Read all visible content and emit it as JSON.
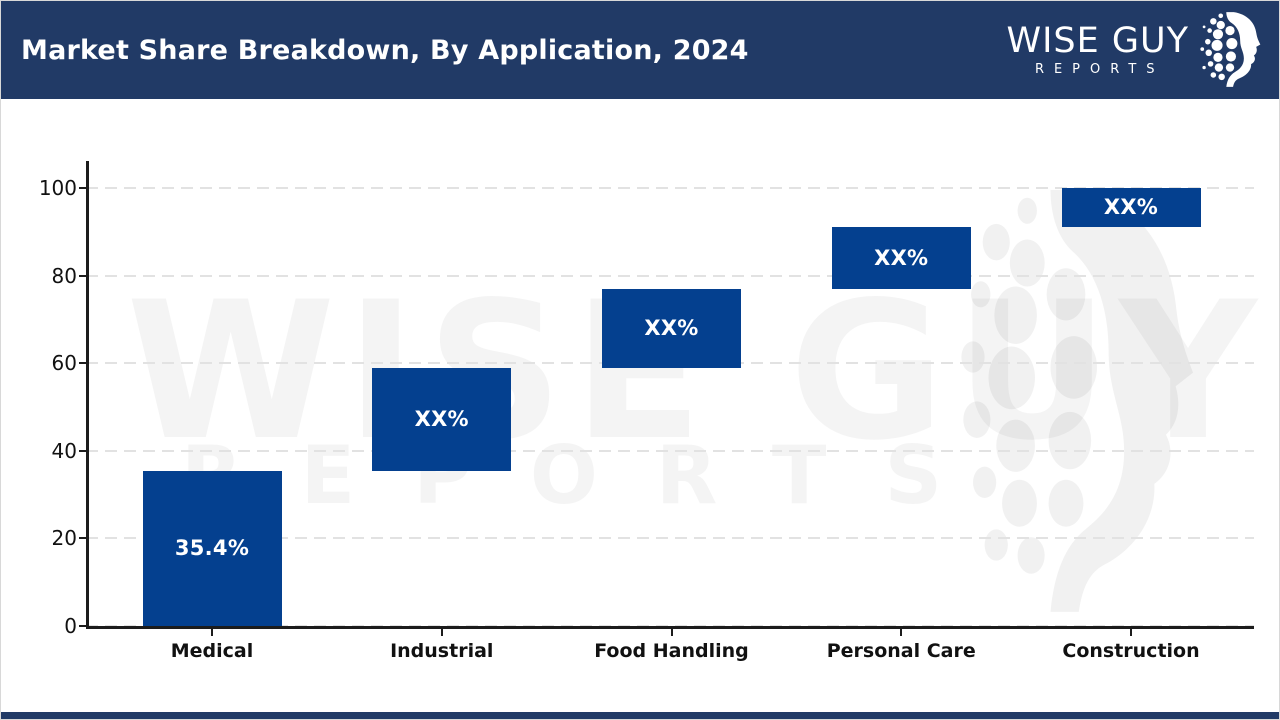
{
  "header": {
    "title": "Market Share Breakdown, By Application, 2024",
    "logo": {
      "line1": "WISE GUY",
      "line2": "REPORTS"
    }
  },
  "watermark": {
    "line1": "WISE GUY",
    "line2": "REPORTS"
  },
  "colors": {
    "header_background": "#213A66",
    "bar_fill": "#04408F",
    "bar_label": "#FFFFFF",
    "axis": "#1C1C1C",
    "gridline": "#E2E2E2"
  },
  "chart_data": {
    "type": "bar",
    "subtype": "waterfall-floating-bars",
    "title": "Market Share Breakdown, By Application, 2024",
    "categories": [
      "Medical",
      "Industrial",
      "Food Handling",
      "Personal Care",
      "Construction"
    ],
    "segments": [
      {
        "category": "Medical",
        "start": 0,
        "end": 35.4,
        "label": "35.4%"
      },
      {
        "category": "Industrial",
        "start": 35.4,
        "end": 59.0,
        "label": "XX%"
      },
      {
        "category": "Food Handling",
        "start": 59.0,
        "end": 76.9,
        "label": "XX%"
      },
      {
        "category": "Personal Care",
        "start": 76.9,
        "end": 91.1,
        "label": "XX%"
      },
      {
        "category": "Construction",
        "start": 91.1,
        "end": 100.0,
        "label": "XX%"
      }
    ],
    "yticks": [
      0,
      20,
      40,
      60,
      80,
      100
    ],
    "ylim": [
      0,
      106
    ],
    "xlabel": "",
    "ylabel": "",
    "grid": "horizontal-dashed",
    "legend": "none"
  }
}
